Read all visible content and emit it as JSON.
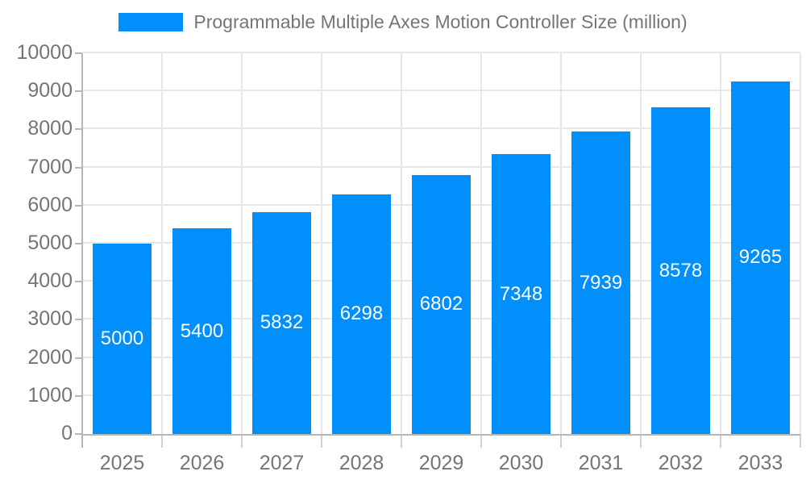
{
  "chart_data": {
    "type": "bar",
    "title": "Programmable Multiple Axes Motion Controller Size (million)",
    "categories": [
      "2025",
      "2026",
      "2027",
      "2028",
      "2029",
      "2030",
      "2031",
      "2032",
      "2033"
    ],
    "series": [
      {
        "name": "Programmable Multiple Axes Motion Controller Size (million)",
        "values": [
          5000,
          5400,
          5832,
          6298,
          6802,
          7348,
          7939,
          8578,
          9265
        ]
      }
    ],
    "xlabel": "",
    "ylabel": "",
    "ylim": [
      0,
      10000
    ],
    "ytick_step": 1000,
    "grid": true,
    "legend_position": "top",
    "bar_value_labels_visible": true,
    "colors": {
      "bar": "#008ffb",
      "grid": "#e7e7e7",
      "axis": "#b6b6b6",
      "text": "#757575",
      "bar_label_text": "#ffffff",
      "background": "#ffffff"
    }
  }
}
